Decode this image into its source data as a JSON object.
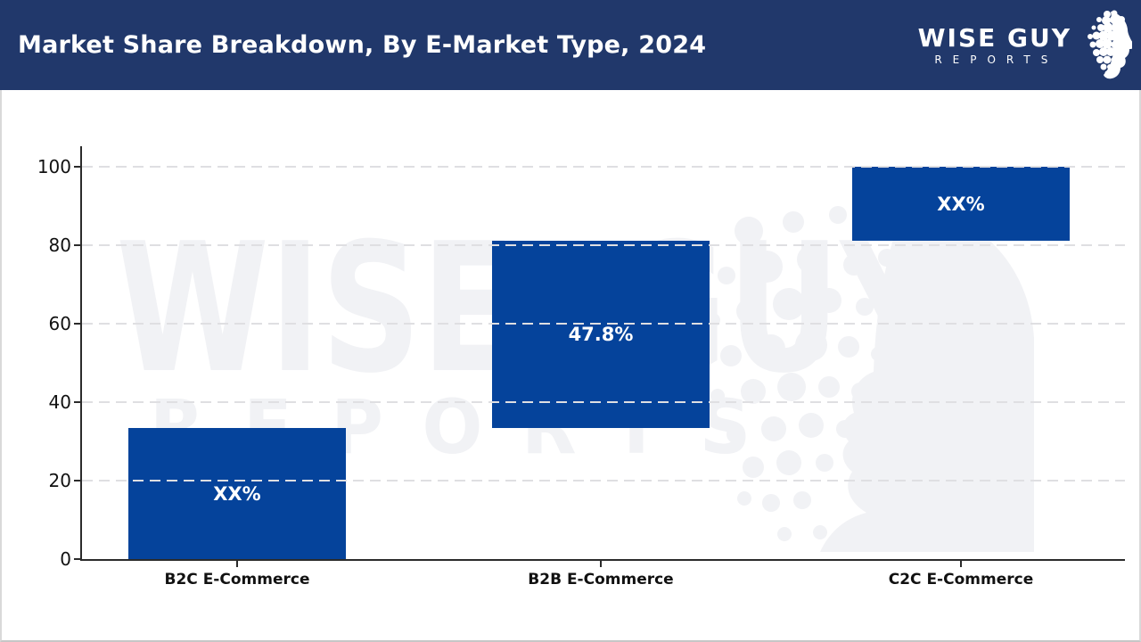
{
  "header": {
    "title": "Market Share Breakdown, By E-Market Type, 2024",
    "logo": {
      "wordmark": "WISE GUY",
      "subtext": "REPORTS"
    }
  },
  "watermark": {
    "wordmark": "WISE GUY",
    "subtext": "REPORTS"
  },
  "chart_data": {
    "type": "bar",
    "subtype": "floating-waterfall",
    "title": "Market Share Breakdown, By E-Market Type, 2024",
    "categories": [
      "B2C E-Commerce",
      "B2B E-Commerce",
      "C2C E-Commerce"
    ],
    "series": [
      {
        "name": "Market share segment (%)",
        "starts": [
          0,
          33.3,
          81.1
        ],
        "ends": [
          33.3,
          81.1,
          100
        ],
        "values": [
          33.3,
          47.8,
          18.9
        ],
        "labels": [
          "XX%",
          "47.8%",
          "XX%"
        ]
      }
    ],
    "xlabel": "",
    "ylabel": "",
    "ylim": [
      0,
      100
    ],
    "yticks": [
      0,
      20,
      40,
      60,
      80,
      100
    ],
    "grid": {
      "horizontal": true,
      "style": "dashed",
      "drawn_above_bars": true
    },
    "legend": "none",
    "bar_color": "#05439B",
    "bar_label_color": "#FFFFFF"
  },
  "colors": {
    "header_bg": "#21386B",
    "canvas_bg": "#FFFFFF",
    "watermark": "#F1F2F5",
    "axis": "#2B2B2B",
    "gridline": "#DFDFE2",
    "title_text": "#FFFFFF"
  }
}
